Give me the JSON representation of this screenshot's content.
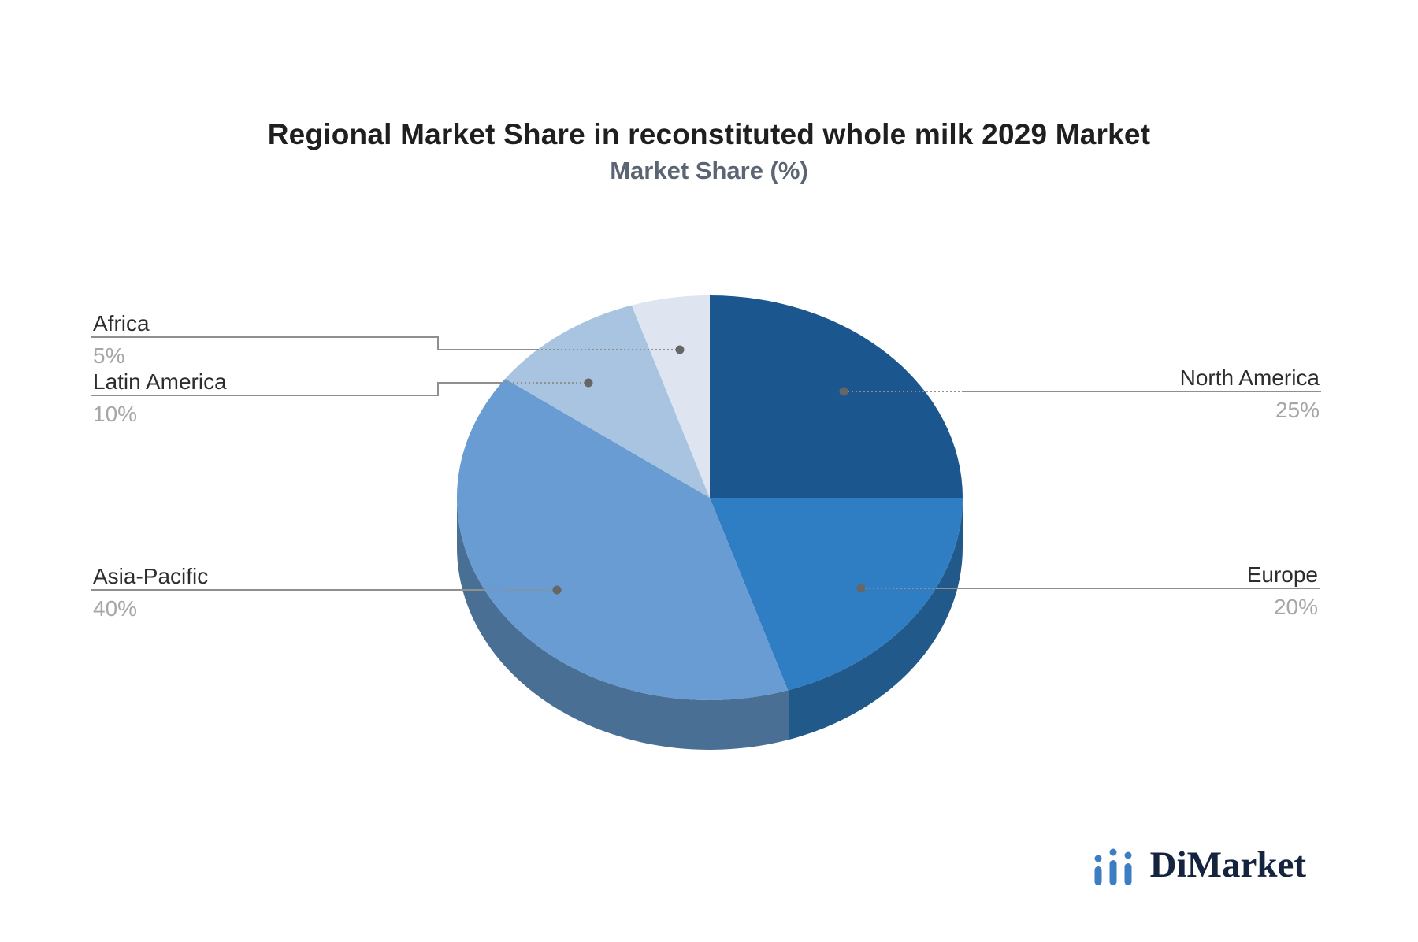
{
  "title": "Regional Market Share in reconstituted whole milk 2029 Market",
  "subtitle": "Market Share (%)",
  "logo_text": "DiMarket",
  "chart_data": {
    "type": "pie",
    "style": "3d-pie-with-callout-labels",
    "title": "Regional Market Share in reconstituted whole milk 2029 Market",
    "subtitle": "Market Share (%)",
    "start_angle_deg": 0,
    "direction": "clockwise",
    "legend_position": "none",
    "slices": [
      {
        "label": "North America",
        "value": 25,
        "display_value": "25%",
        "color": "#1B568F"
      },
      {
        "label": "Europe",
        "value": 20,
        "display_value": "20%",
        "color": "#2F7DC3"
      },
      {
        "label": "Asia-Pacific",
        "value": 40,
        "display_value": "40%",
        "color": "#689CD2"
      },
      {
        "label": "Latin America",
        "value": 10,
        "display_value": "10%",
        "color": "#A8C4E0"
      },
      {
        "label": "Africa",
        "value": 5,
        "display_value": "5%",
        "color": "#DEE5F0"
      }
    ]
  },
  "colors": {
    "background": "#FFFFFF",
    "title": "#1F1F1F",
    "subtitle": "#5A6472",
    "slice_label_text": "#2D2D2D",
    "percent_text": "#A6A6A6",
    "leader_line": "#8F8F8F",
    "leader_dot": "#666666",
    "logo_text": "#15233F",
    "logo_icon": "#3C7DC3"
  }
}
